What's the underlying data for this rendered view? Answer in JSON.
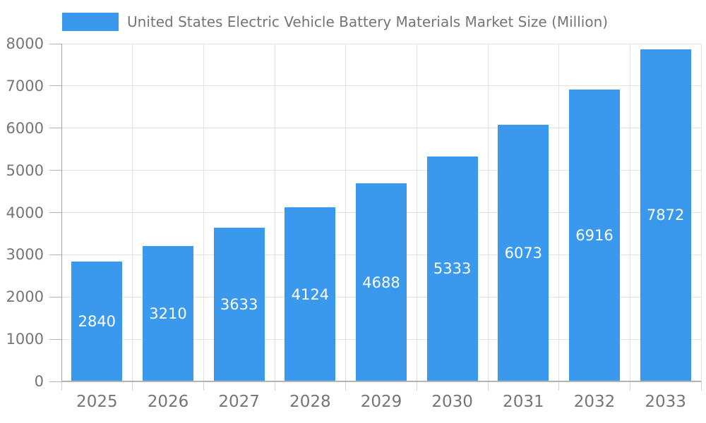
{
  "chart_data": {
    "type": "bar",
    "title": "United States Electric Vehicle Battery Materials Market Size (Million)",
    "categories": [
      "2025",
      "2026",
      "2027",
      "2028",
      "2029",
      "2030",
      "2031",
      "2032",
      "2033"
    ],
    "values": [
      2840,
      3210,
      3633,
      4124,
      4688,
      5333,
      6073,
      6916,
      7872
    ],
    "xlabel": "",
    "ylabel": "",
    "ylim": [
      0,
      8000
    ],
    "yticks": [
      0,
      1000,
      2000,
      3000,
      4000,
      5000,
      6000,
      7000,
      8000
    ],
    "legend_position": "top-left",
    "grid": {
      "horizontal": true,
      "vertical": true
    },
    "bar_labels": "inside-center",
    "colors": {
      "bar": "#3b99ed",
      "bar_label": "#ffffff",
      "axis_text": "#757575",
      "gridline": "#e3e3e3",
      "axis_line": "#b3b3b3"
    }
  }
}
